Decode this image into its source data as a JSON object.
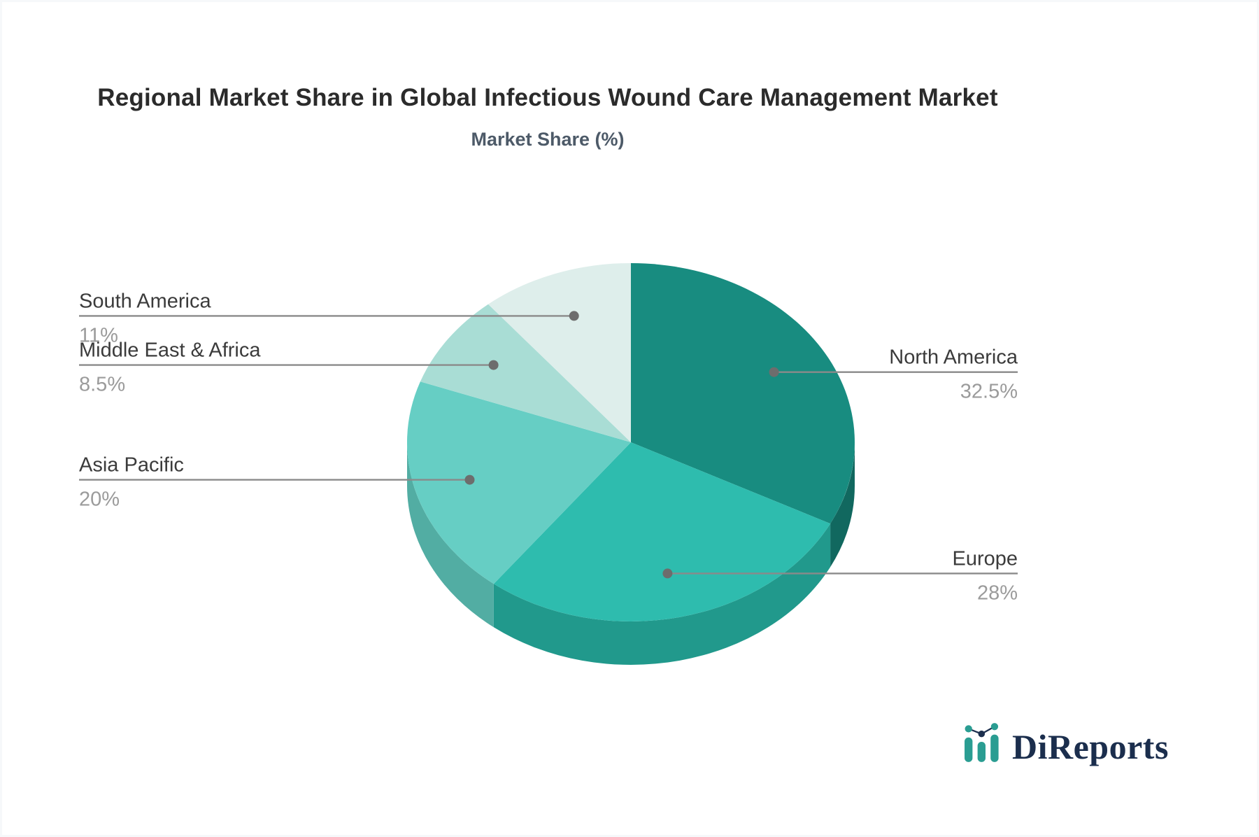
{
  "page": {
    "background": "#ffffff",
    "frame_color": "#f6f8fa"
  },
  "header": {
    "title": "Regional Market Share in Global Infectious Wound Care Management Market",
    "subtitle": "Market Share (%)"
  },
  "chart_data": {
    "type": "pie",
    "style": "3d-pie",
    "title": "Regional Market Share in Global Infectious Wound Care Management Market",
    "subtitle": "Market Share (%)",
    "unit": "%",
    "rotation": "clockwise-from-top",
    "labels": [
      "North America",
      "Europe",
      "Asia Pacific",
      "Middle East & Africa",
      "South America"
    ],
    "values": [
      32.5,
      28,
      20,
      8.5,
      11
    ],
    "value_labels": [
      "32.5%",
      "28%",
      "20%",
      "8.5%",
      "11%"
    ],
    "colors": [
      "#188c80",
      "#2ebcae",
      "#66cec4",
      "#a9ddd5",
      "#deeeeb"
    ],
    "side_colors": [
      "#11685f",
      "#21998c",
      "#52ada3",
      "#8cc8c0",
      "#c2dcd8"
    ],
    "callout_sides": [
      "right",
      "right",
      "left",
      "left",
      "left"
    ],
    "leader_line_color": "#8a8a8a",
    "dot_color": "#6d6d6d",
    "label_color": "#3b3b3b",
    "value_label_color": "#9b9b9b",
    "legend": "none",
    "label_style": "callout-leader-lines"
  },
  "brand": {
    "name": "DiReports",
    "icon": "bar-chart-trend-icon",
    "text_color": "#1b2e4d",
    "icon_color": "#2a9d92",
    "icon_dark_color": "#1c2f4e"
  }
}
